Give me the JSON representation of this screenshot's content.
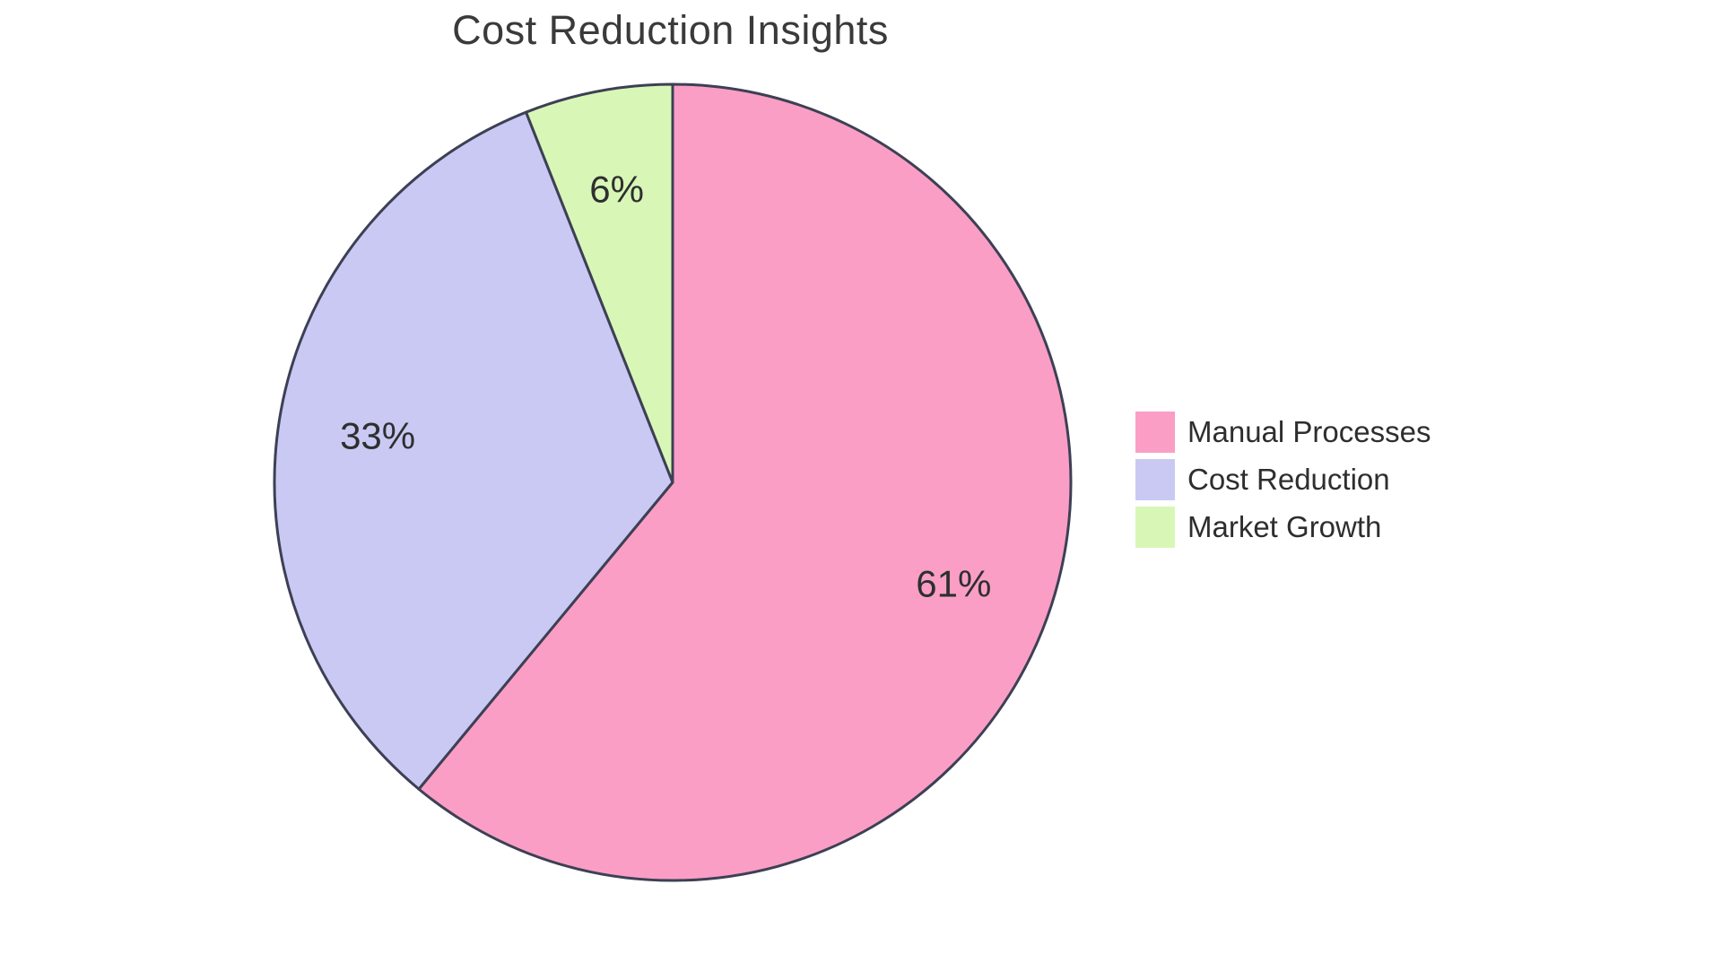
{
  "chart_data": {
    "type": "pie",
    "title": "Cost Reduction Insights",
    "categories": [
      "Manual Processes",
      "Cost Reduction",
      "Market Growth"
    ],
    "values": [
      61,
      33,
      6
    ],
    "slice_labels": [
      "61%",
      "33%",
      "6%"
    ],
    "colors": [
      "#FA9EC5",
      "#C9C9F4",
      "#D8F7B7"
    ],
    "stroke_color": "#3D4054",
    "stroke_width": 3,
    "start_angle_deg": 0,
    "direction": "clockwise",
    "label_radius_fraction": 0.75,
    "label_color": "#2F2F2F",
    "title_color": "#3A3A3A",
    "legend_position": "right",
    "legend_text_color": "#2E2E2E",
    "background_color": "#FFFFFF"
  }
}
